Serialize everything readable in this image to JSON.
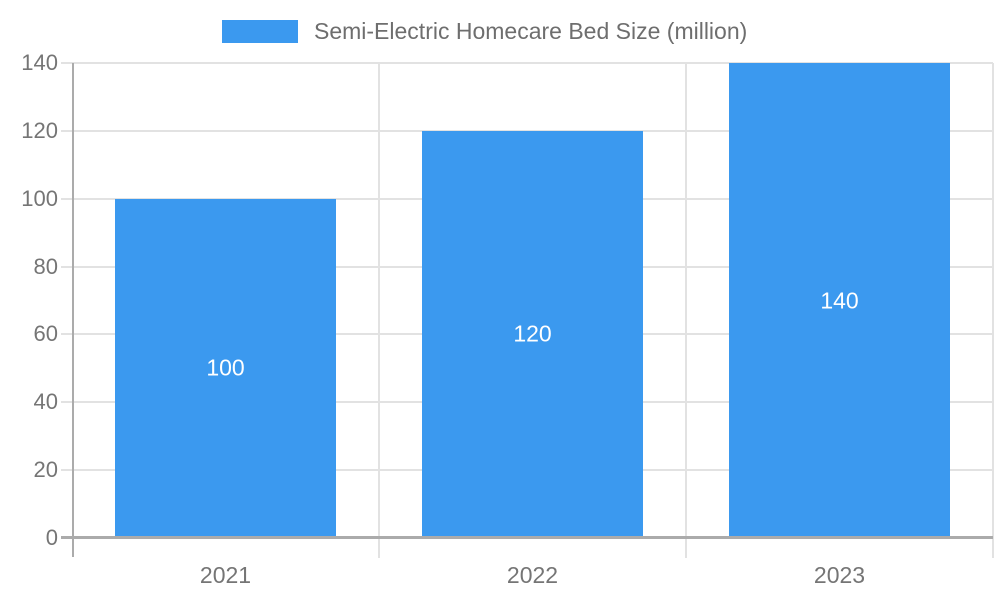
{
  "chart_data": {
    "type": "bar",
    "title": "Semi-Electric Homecare Bed Size (million)",
    "legend": {
      "position": "top",
      "entries": [
        "Semi-Electric Homecare Bed Size (million)"
      ]
    },
    "categories": [
      "2021",
      "2022",
      "2023"
    ],
    "series": [
      {
        "name": "Semi-Electric Homecare Bed Size (million)",
        "values": [
          100,
          120,
          140
        ]
      }
    ],
    "data_labels": [
      "100",
      "120",
      "140"
    ],
    "data_label_position": "inside-center",
    "xlabel": "",
    "ylabel": "",
    "ylim": [
      0,
      140
    ],
    "yticks": [
      0,
      20,
      40,
      60,
      80,
      100,
      120,
      140
    ],
    "grid": "horizontal-and-category-separators",
    "colors": {
      "bar": "#3B99EF",
      "bar_label_text": "#ffffff",
      "axis_text": "#757575",
      "legend_text": "#6e6e6e",
      "gridline": "#e2e2e2",
      "axis_line": "#ababab",
      "background": "#ffffff"
    }
  }
}
